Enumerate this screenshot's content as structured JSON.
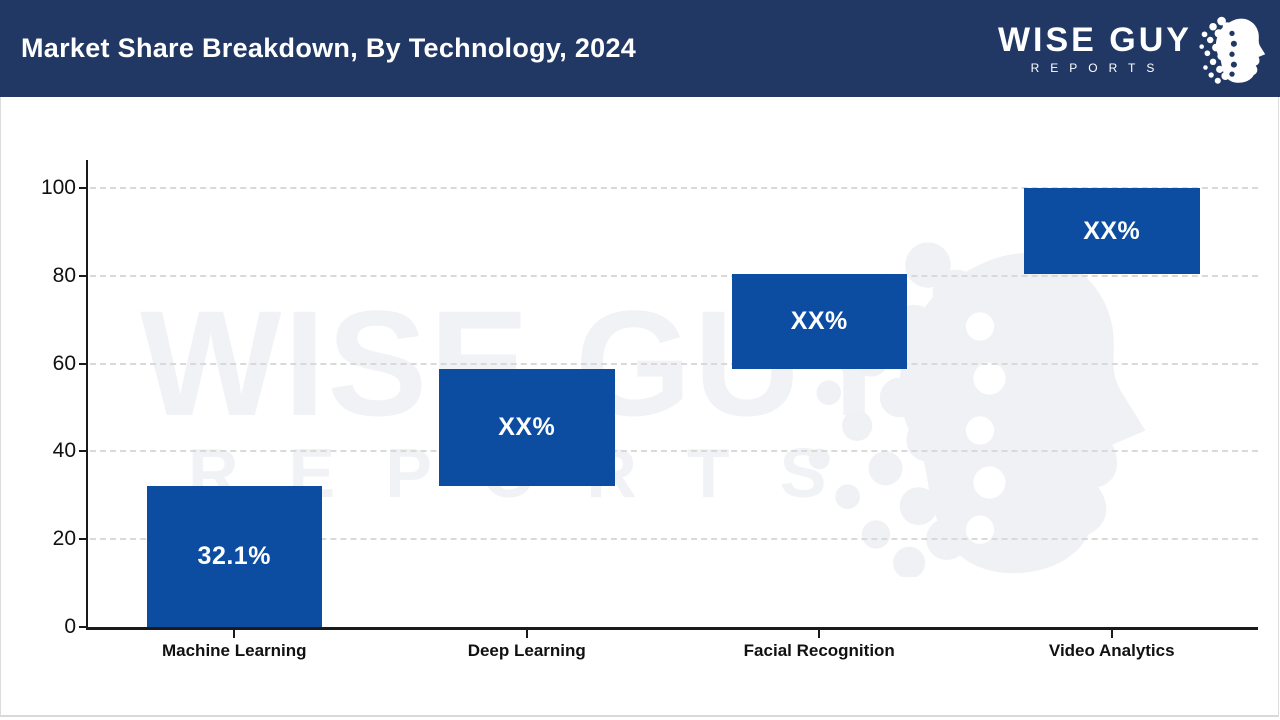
{
  "header": {
    "title": "Market Share Breakdown, By Technology, 2024",
    "background_color": "#213864"
  },
  "logo": {
    "name": "WISE GUY",
    "subtitle": "REPORTS"
  },
  "watermark": {
    "line1": "WISE GUY",
    "line2": "REPORTS"
  },
  "chart_data": {
    "type": "bar",
    "subtype": "waterfall",
    "title": "Market Share Breakdown, By Technology, 2024",
    "categories": [
      "Machine Learning",
      "Deep Learning",
      "Facial Recognition",
      "Video Analytics"
    ],
    "segments": [
      {
        "category": "Machine Learning",
        "start": 0,
        "end": 32.1,
        "label": "32.1%"
      },
      {
        "category": "Deep Learning",
        "start": 32.1,
        "end": 58.8,
        "label": "XX%"
      },
      {
        "category": "Facial Recognition",
        "start": 58.8,
        "end": 80.3,
        "label": "XX%"
      },
      {
        "category": "Video Analytics",
        "start": 80.3,
        "end": 100,
        "label": "XX%"
      }
    ],
    "values_shown": [
      "32.1%",
      "XX%",
      "XX%",
      "XX%"
    ],
    "xlabel": "",
    "ylabel": "",
    "ylim": [
      0,
      100
    ],
    "yticks": [
      0,
      20,
      40,
      60,
      80,
      100
    ],
    "grid": "horizontal-dashed",
    "legend": "none",
    "colors": {
      "bar": "#0c4da2",
      "bar_label": "#ffffff",
      "axis": "#1a1a1a",
      "gridline": "#d9d9d9",
      "tick_label": "#111111"
    }
  }
}
